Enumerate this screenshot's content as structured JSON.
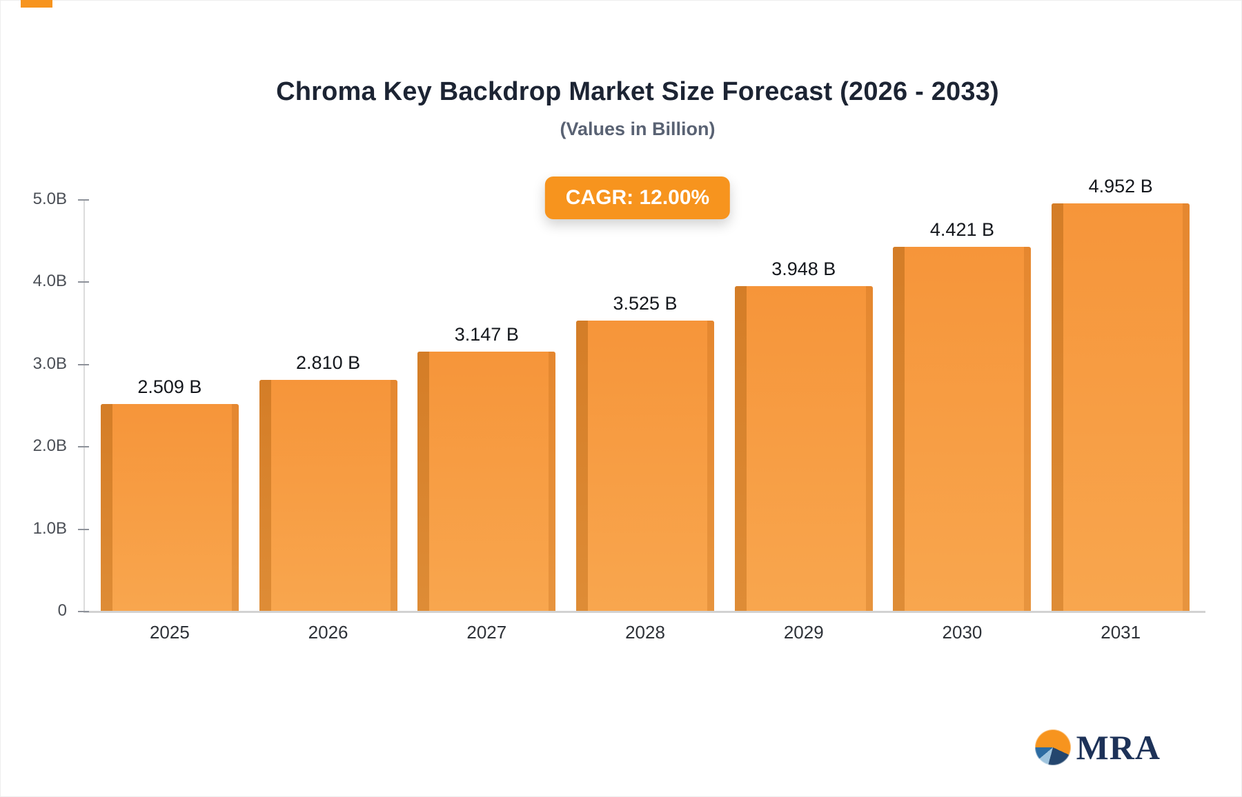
{
  "header": {
    "title": "Chroma Key Backdrop Market Size Forecast (2026 - 2033)",
    "subtitle": "(Values in Billion)"
  },
  "badge": {
    "label": "CAGR: 12.00%",
    "color": "#f7941e"
  },
  "chart_data": {
    "type": "bar",
    "title": "Chroma Key Backdrop Market Size Forecast (2026 - 2033)",
    "subtitle": "(Values in Billion)",
    "categories": [
      "2025",
      "2026",
      "2027",
      "2028",
      "2029",
      "2030",
      "2031"
    ],
    "values": [
      2.509,
      2.81,
      3.147,
      3.525,
      3.948,
      4.421,
      4.952
    ],
    "value_labels": [
      "2.509 B",
      "2.810 B",
      "3.147 B",
      "3.525 B",
      "3.948 B",
      "4.421 B",
      "4.952 B"
    ],
    "xlabel": "",
    "ylabel": "",
    "ylim": [
      0,
      5
    ],
    "yticks": [
      {
        "value": 0,
        "label": "0"
      },
      {
        "value": 1,
        "label": "1.0B"
      },
      {
        "value": 2,
        "label": "2.0B"
      },
      {
        "value": 3,
        "label": "3.0B"
      },
      {
        "value": 4,
        "label": "4.0B"
      },
      {
        "value": 5,
        "label": "5.0B"
      }
    ],
    "grid": false,
    "legend": false,
    "bar_color_top": "#f6953a",
    "bar_color_bottom": "#f8a64e",
    "bar_shade_color": "#d47d27",
    "annotation": "CAGR: 12.00%"
  },
  "logo": {
    "text": "MRA"
  }
}
